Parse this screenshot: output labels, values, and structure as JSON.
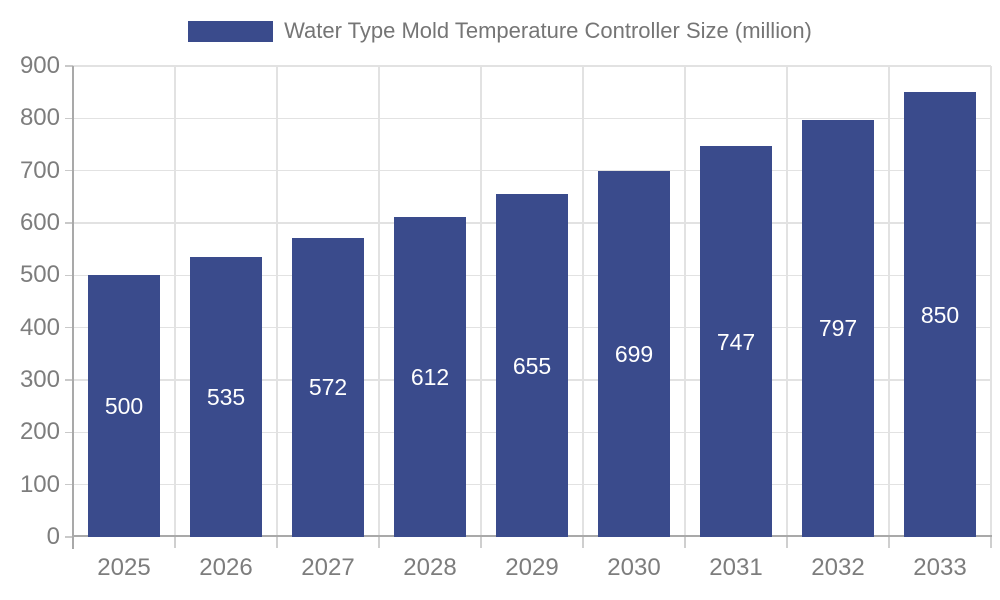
{
  "chart_data": {
    "type": "bar",
    "title": "",
    "legend": "Water Type Mold Temperature Controller Size (million)",
    "legend_position": "top-center",
    "categories": [
      "2025",
      "2026",
      "2027",
      "2028",
      "2029",
      "2030",
      "2031",
      "2032",
      "2033"
    ],
    "values": [
      500,
      535,
      572,
      612,
      655,
      699,
      747,
      797,
      850
    ],
    "xlabel": "",
    "ylabel": "",
    "ylim": [
      0,
      900
    ],
    "yticks": [
      0,
      100,
      200,
      300,
      400,
      500,
      600,
      700,
      800,
      900
    ],
    "grid": true,
    "value_labels": "centered-inside-bars",
    "colors": {
      "bar": "#3A4B8C",
      "value_label": "#FFFFFF",
      "axis_text": "#7D7D7D",
      "legend_text": "#757575",
      "gridline": "#E2E2E2",
      "axis_line": "#A9A9A9",
      "background": "#FFFFFF"
    }
  }
}
